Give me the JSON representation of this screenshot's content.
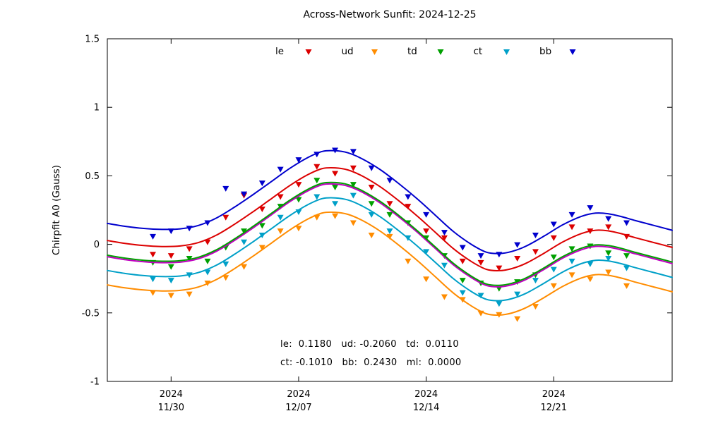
{
  "title": "Across-Network Sunfit: 2024-12-25",
  "y_axis_label": "Chirpfit A0 (Gauss)",
  "annotations": {
    "line1": "le:  0.1180   ud: -0.2060   td:  0.0110",
    "line2": "ct: -0.1010   bb:  0.2430   ml:  0.0000"
  },
  "fit_values": {
    "le": 0.118,
    "ud": -0.206,
    "td": 0.011,
    "ct": -0.101,
    "bb": 0.243,
    "ml": 0.0
  },
  "legend": [
    {
      "label": "le",
      "color": "#dc0000"
    },
    {
      "label": "ud",
      "color": "#ff8c00"
    },
    {
      "label": "td",
      "color": "#00a000"
    },
    {
      "label": "ct",
      "color": "#00a0c8"
    },
    {
      "label": "bb",
      "color": "#0000cd"
    }
  ],
  "chart_data": {
    "type": "scatter",
    "title": "Across-Network Sunfit: 2024-12-25",
    "ylabel": "Chirpfit A0 (Gauss)",
    "grid": false,
    "legend_position": "top-horizontal",
    "x_range_days": [
      -3.5,
      27.5
    ],
    "y_range": [
      -1,
      1.5
    ],
    "x_axis": {
      "ticks": [
        {
          "t": 0,
          "year": "2024",
          "date": "11/30"
        },
        {
          "t": 7,
          "year": "2024",
          "date": "12/07"
        },
        {
          "t": 14,
          "year": "2024",
          "date": "12/14"
        },
        {
          "t": 21,
          "year": "2024",
          "date": "12/21"
        }
      ]
    },
    "y_axis": {
      "ticks": [
        {
          "v": -1,
          "label": "-1"
        },
        {
          "v": -0.5,
          "label": "-0.5"
        },
        {
          "v": 0,
          "label": "0"
        },
        {
          "v": 0.5,
          "label": "0.5"
        },
        {
          "v": 1,
          "label": "1"
        },
        {
          "v": 1.5,
          "label": "1.5"
        }
      ]
    },
    "x_days": [
      -1,
      0,
      1,
      2,
      3,
      4,
      5,
      6,
      7,
      8,
      9,
      10,
      11,
      12,
      13,
      14,
      15,
      16,
      17,
      18,
      19,
      20,
      21,
      22,
      23,
      24,
      25
    ],
    "shape_keypoints": [
      [
        -3.5,
        -0.09
      ],
      [
        -2.5,
        -0.112
      ],
      [
        -1.5,
        -0.127
      ],
      [
        -0.5,
        -0.134
      ],
      [
        0.5,
        -0.13
      ],
      [
        1.5,
        -0.105
      ],
      [
        2.5,
        -0.05
      ],
      [
        3.5,
        0.03
      ],
      [
        4.5,
        0.12
      ],
      [
        5.5,
        0.215
      ],
      [
        6.5,
        0.31
      ],
      [
        7.5,
        0.39
      ],
      [
        8.3,
        0.435
      ],
      [
        9,
        0.44
      ],
      [
        9.7,
        0.425
      ],
      [
        10.5,
        0.38
      ],
      [
        11.5,
        0.3
      ],
      [
        12.5,
        0.2
      ],
      [
        13.5,
        0.09
      ],
      [
        14.5,
        -0.03
      ],
      [
        15.5,
        -0.15
      ],
      [
        16.5,
        -0.245
      ],
      [
        17.3,
        -0.3
      ],
      [
        18,
        -0.31
      ],
      [
        18.7,
        -0.295
      ],
      [
        19.5,
        -0.255
      ],
      [
        20.5,
        -0.18
      ],
      [
        21.5,
        -0.1
      ],
      [
        22.5,
        -0.04
      ],
      [
        23.3,
        -0.015
      ],
      [
        24,
        -0.02
      ],
      [
        24.7,
        -0.04
      ],
      [
        25.5,
        -0.07
      ],
      [
        26.5,
        -0.105
      ],
      [
        27.5,
        -0.14
      ]
    ],
    "series": [
      {
        "name": "ml",
        "color": "#c000c0",
        "offset": 0.0,
        "scatter": null
      },
      {
        "name": "ud",
        "color": "#ff8c00",
        "offset": -0.206,
        "scatter": [
          -0.35,
          -0.37,
          -0.36,
          -0.28,
          -0.24,
          -0.16,
          -0.02,
          0.1,
          0.12,
          0.2,
          0.21,
          0.16,
          0.07,
          0.06,
          -0.12,
          -0.25,
          -0.38,
          -0.4,
          -0.5,
          -0.51,
          -0.54,
          -0.45,
          -0.3,
          -0.22,
          -0.25,
          -0.2,
          -0.3
        ]
      },
      {
        "name": "ct",
        "color": "#00a0c8",
        "offset": -0.101,
        "scatter": [
          -0.25,
          -0.26,
          -0.22,
          -0.2,
          -0.14,
          0.02,
          0.07,
          0.2,
          0.24,
          0.35,
          0.3,
          0.36,
          0.22,
          0.1,
          0.05,
          -0.05,
          -0.15,
          -0.35,
          -0.37,
          -0.43,
          -0.36,
          -0.26,
          -0.18,
          -0.12,
          -0.14,
          -0.1,
          -0.17
        ]
      },
      {
        "name": "td",
        "color": "#00a000",
        "offset": 0.011,
        "scatter": [
          -0.13,
          -0.16,
          -0.1,
          -0.12,
          -0.02,
          0.1,
          0.14,
          0.28,
          0.33,
          0.47,
          0.42,
          0.44,
          0.3,
          0.22,
          0.16,
          0.05,
          -0.08,
          -0.26,
          -0.28,
          -0.32,
          -0.27,
          -0.22,
          -0.09,
          -0.03,
          -0.01,
          -0.06,
          -0.08
        ]
      },
      {
        "name": "le",
        "color": "#dc0000",
        "offset": 0.118,
        "scatter": [
          -0.07,
          -0.08,
          -0.03,
          0.02,
          0.2,
          0.36,
          0.26,
          0.35,
          0.44,
          0.57,
          0.52,
          0.56,
          0.42,
          0.3,
          0.28,
          0.1,
          0.05,
          -0.12,
          -0.13,
          -0.17,
          -0.1,
          -0.05,
          0.05,
          0.13,
          0.1,
          0.13,
          0.06
        ]
      },
      {
        "name": "bb",
        "color": "#0000cd",
        "offset": 0.243,
        "scatter": [
          0.06,
          0.1,
          0.12,
          0.16,
          0.41,
          0.37,
          0.45,
          0.55,
          0.62,
          0.66,
          0.69,
          0.68,
          0.56,
          0.47,
          0.35,
          0.22,
          0.09,
          -0.02,
          -0.08,
          -0.07,
          0.0,
          0.07,
          0.15,
          0.22,
          0.27,
          0.19,
          0.16
        ]
      }
    ]
  }
}
